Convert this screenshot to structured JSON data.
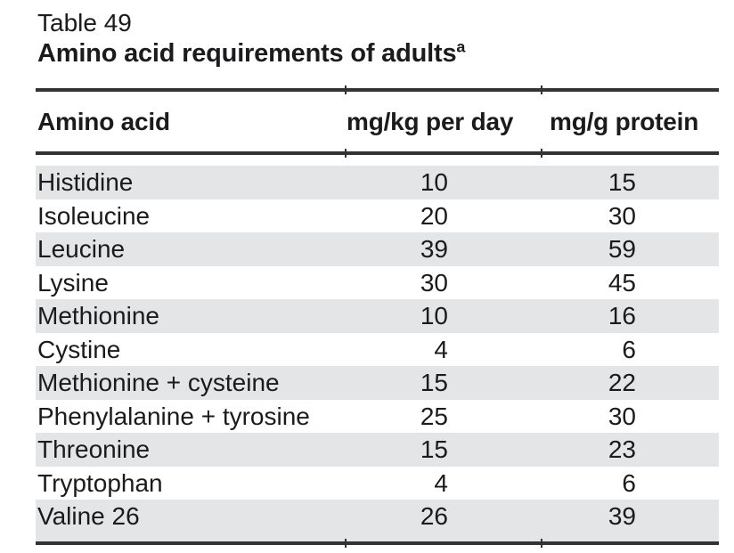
{
  "caption": {
    "table_number": "Table 49",
    "title": "Amino acid requirements of adults",
    "footnote_marker": "a"
  },
  "table": {
    "columns": [
      {
        "id": "amino_acid",
        "label": "Amino acid"
      },
      {
        "id": "mg_kg_day",
        "label": "mg/kg per day"
      },
      {
        "id": "mg_g_protein",
        "label": "mg/g protein"
      }
    ],
    "rows": [
      {
        "amino_acid": "Histidine",
        "mg_kg_day": 10,
        "mg_g_protein": 15
      },
      {
        "amino_acid": "Isoleucine",
        "mg_kg_day": 20,
        "mg_g_protein": 30
      },
      {
        "amino_acid": "Leucine",
        "mg_kg_day": 39,
        "mg_g_protein": 59
      },
      {
        "amino_acid": "Lysine",
        "mg_kg_day": 30,
        "mg_g_protein": 45
      },
      {
        "amino_acid": "Methionine",
        "mg_kg_day": 10,
        "mg_g_protein": 16
      },
      {
        "amino_acid": "Cystine",
        "mg_kg_day": 4,
        "mg_g_protein": 6
      },
      {
        "amino_acid": "Methionine + cysteine",
        "mg_kg_day": 15,
        "mg_g_protein": 22
      },
      {
        "amino_acid": "Phenylalanine + tyrosine",
        "mg_kg_day": 25,
        "mg_g_protein": 30
      },
      {
        "amino_acid": "Threonine",
        "mg_kg_day": 15,
        "mg_g_protein": 23
      },
      {
        "amino_acid": "Tryptophan",
        "mg_kg_day": 4,
        "mg_g_protein": 6
      },
      {
        "amino_acid": "Valine 26",
        "mg_kg_day": 26,
        "mg_g_protein": 39
      }
    ]
  },
  "colors": {
    "background": "#ffffff",
    "text": "#1b1b1d",
    "rule": "#333333",
    "row_shade": "#e4e5e7"
  }
}
